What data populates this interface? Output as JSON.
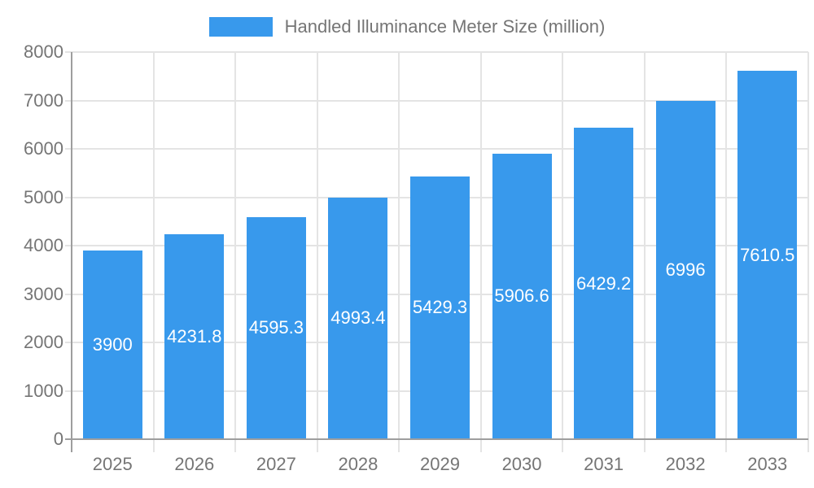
{
  "legend": {
    "label": "Handled Illuminance Meter Size (million)"
  },
  "colors": {
    "bar": "#3899ec",
    "grid_line": "#e4e4e4",
    "axis_line": "#9e9e9e",
    "axis_text": "#757575",
    "bar_label_text": "#ffffff",
    "background": "#ffffff"
  },
  "chart_data": {
    "type": "bar",
    "title": "Handled Illuminance Meter Size (million)",
    "categories": [
      "2025",
      "2026",
      "2027",
      "2028",
      "2029",
      "2030",
      "2031",
      "2032",
      "2033"
    ],
    "series": [
      {
        "name": "Handled Illuminance Meter Size (million)",
        "values": [
          3900,
          4231.8,
          4595.3,
          4993.4,
          5429.3,
          5906.6,
          6429.2,
          6996,
          7610.5
        ]
      }
    ],
    "value_labels": [
      "3900",
      "4231.8",
      "4595.3",
      "4993.4",
      "5429.3",
      "5906.6",
      "6429.2",
      "6996",
      "7610.5"
    ],
    "xlabel": "",
    "ylabel": "",
    "ylim": [
      0,
      8000
    ],
    "ytick_step": 1000,
    "yticks": [
      0,
      1000,
      2000,
      3000,
      4000,
      5000,
      6000,
      7000,
      8000
    ],
    "grid": true,
    "legend_position": "top",
    "value_label_position": "center-inside-bar"
  }
}
